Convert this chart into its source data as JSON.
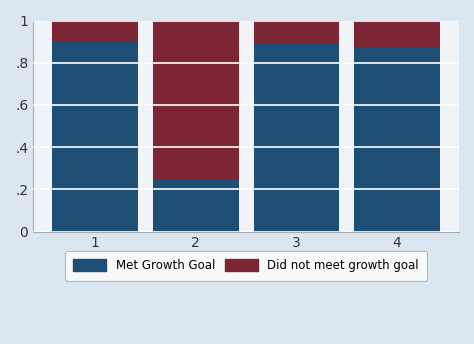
{
  "categories": [
    1,
    2,
    3,
    4
  ],
  "met_goal": [
    0.9,
    0.25,
    0.89,
    0.875
  ],
  "did_not_meet": [
    0.1,
    0.75,
    0.11,
    0.125
  ],
  "met_goal_color": "#1d4f76",
  "did_not_meet_color": "#7b2535",
  "plot_bg_color": "#f0f4f8",
  "fig_bg_color": "#dce6f0",
  "ylim": [
    0,
    1
  ],
  "yticks": [
    0,
    0.2,
    0.4,
    0.6,
    0.8,
    1.0
  ],
  "ytick_labels": [
    "0",
    ".2",
    ".4",
    ".6",
    ".8",
    "1"
  ],
  "xtick_labels": [
    "1",
    "2",
    "3",
    "4"
  ],
  "legend_met": "Met Growth Goal",
  "legend_not_met": "Did not meet growth goal",
  "bar_width": 0.85,
  "grid_color": "#ffffff",
  "spine_color": "#aaaaaa"
}
